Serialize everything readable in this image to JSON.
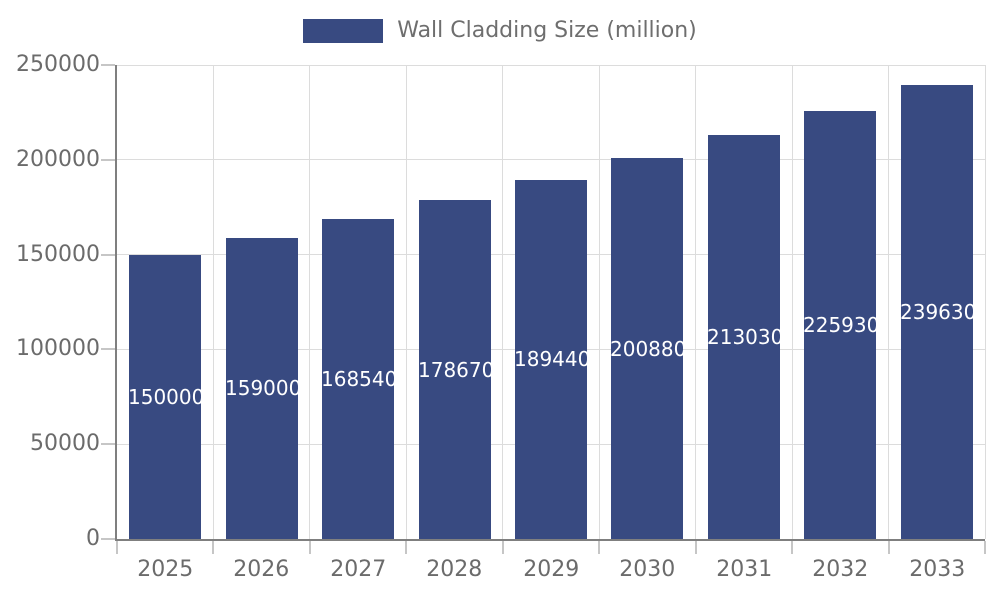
{
  "legend": {
    "label": "Wall Cladding Size (million)"
  },
  "chart_data": {
    "type": "bar",
    "title": "",
    "xlabel": "",
    "ylabel": "",
    "categories": [
      "2025",
      "2026",
      "2027",
      "2028",
      "2029",
      "2030",
      "2031",
      "2032",
      "2033"
    ],
    "series": [
      {
        "name": "Wall Cladding Size (million)",
        "values": [
          150000,
          159000,
          168540,
          178670,
          189440,
          200880,
          213030,
          225930,
          239630
        ]
      }
    ],
    "data_labels": [
      "150000",
      "159000",
      "168540",
      "178670",
      "189440",
      "200880",
      "213030",
      "225930",
      "239630"
    ],
    "ylim": [
      0,
      250000
    ],
    "yticks": [
      0,
      50000,
      100000,
      150000,
      200000,
      250000
    ],
    "ytick_labels": [
      "0",
      "50000",
      "100000",
      "150000",
      "200000",
      "250000"
    ],
    "grid": true,
    "legend_position": "top-center",
    "bar_color": "#384A81",
    "label_color": "#ffffff",
    "grid_color": "#dcdcdc",
    "axis_color": "#7f7f7f",
    "tick_label_color": "#6b6b6b",
    "legend_text_color": "#6e6e6e"
  }
}
